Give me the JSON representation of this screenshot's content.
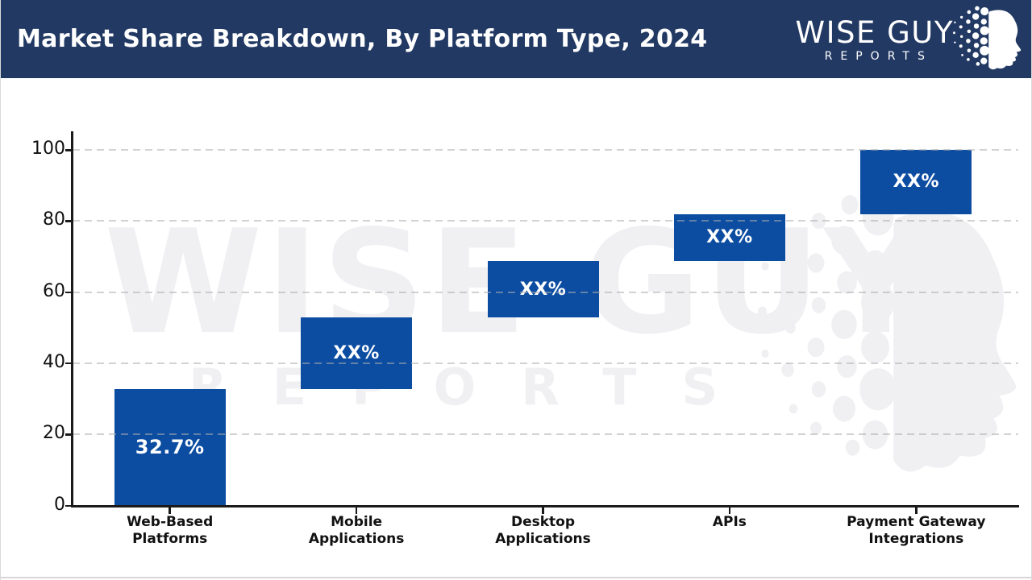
{
  "header": {
    "title": "Market Share Breakdown, By Platform Type, 2024"
  },
  "logo": {
    "line1": "WISE GUY",
    "line2": "REPORTS"
  },
  "watermark": {
    "line1": "WISE GUY",
    "line2": "REPORTS"
  },
  "colors": {
    "header_bg": "#223963",
    "bar_fill": "#0c4da2",
    "bar_label_text": "#ffffff",
    "axis": "#1a1a1a",
    "gridline": "#cfcfcf",
    "watermark": "#f0f0f3"
  },
  "chart_data": {
    "type": "bar",
    "subtype": "waterfall",
    "title": "Market Share Breakdown, By Platform Type, 2024",
    "xlabel": "",
    "ylabel": "",
    "ylim": [
      0,
      105
    ],
    "yticks": [
      0,
      20,
      40,
      60,
      80,
      100
    ],
    "grid": "horizontal dashed, drawn over bars",
    "legend": "none",
    "categories": [
      "Web-Based\nPlatforms",
      "Mobile\nApplications",
      "Desktop\nApplications",
      "APIs",
      "Payment Gateway\nIntegrations"
    ],
    "segments": [
      {
        "category": "Web-Based Platforms",
        "start": 0,
        "end": 32.7,
        "label": "32.7%"
      },
      {
        "category": "Mobile Applications",
        "start": 32.7,
        "end": 52.8,
        "label": "XX%"
      },
      {
        "category": "Desktop Applications",
        "start": 52.8,
        "end": 68.8,
        "label": "XX%"
      },
      {
        "category": "APIs",
        "start": 68.8,
        "end": 81.9,
        "label": "XX%"
      },
      {
        "category": "Payment Gateway Integrations",
        "start": 81.9,
        "end": 100,
        "label": "XX%"
      }
    ]
  }
}
